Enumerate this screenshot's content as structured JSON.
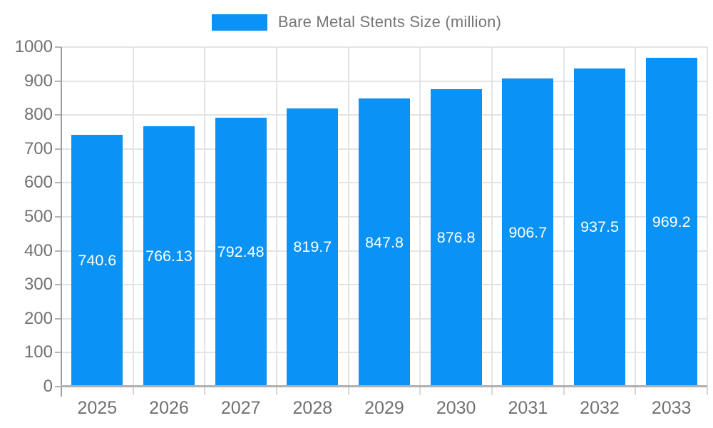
{
  "chart_data": {
    "type": "bar",
    "title": "Bare Metal Stents Size (million)",
    "categories": [
      "2025",
      "2026",
      "2027",
      "2028",
      "2029",
      "2030",
      "2031",
      "2032",
      "2033"
    ],
    "series": [
      {
        "name": "Bare Metal Stents Size (million)",
        "values": [
          740.6,
          766.13,
          792.48,
          819.7,
          847.8,
          876.8,
          906.7,
          937.5,
          969.2
        ]
      }
    ],
    "value_labels": [
      "740.6",
      "766.13",
      "792.48",
      "819.7",
      "847.8",
      "876.8",
      "906.7",
      "937.5",
      "969.2"
    ],
    "xlabel": "",
    "ylabel": "",
    "ylim": [
      0,
      1000
    ],
    "ytick_step": 100,
    "ytick_labels": [
      "0",
      "100",
      "200",
      "300",
      "400",
      "500",
      "600",
      "700",
      "800",
      "900",
      "1000"
    ],
    "grid": true,
    "legend_position": "top",
    "value_label_position": "inside-middle",
    "colors": {
      "bar": "#0a92f5",
      "grid_line": "#e4e4e4",
      "y_axis_line": "#9e9e9e",
      "x_axis_line": "#b0b0b0",
      "tick": "#b3b3b3",
      "axis_text": "#717171",
      "bar_value_text": "#ffffff",
      "legend_text": "#757575",
      "background": "#ffffff"
    }
  }
}
